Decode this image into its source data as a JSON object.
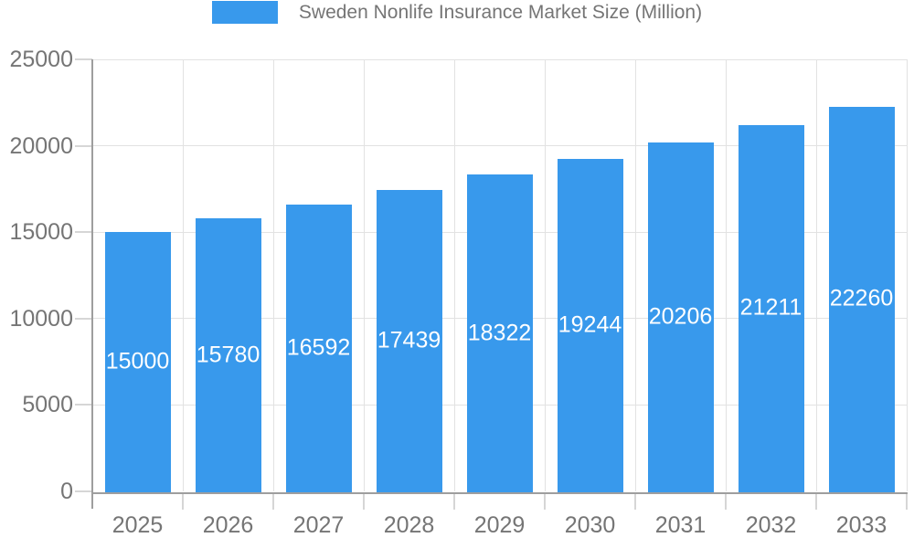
{
  "chart_data": {
    "type": "bar",
    "title": "Sweden Nonlife Insurance Market Size (Million)",
    "legend": {
      "position": "top",
      "label": "Sweden Nonlife Insurance Market Size (Million)"
    },
    "categories": [
      "2025",
      "2026",
      "2027",
      "2028",
      "2029",
      "2030",
      "2031",
      "2032",
      "2033"
    ],
    "series": [
      {
        "name": "Sweden Nonlife Insurance Market Size (Million)",
        "values": [
          15000,
          15780,
          16592,
          17439,
          18322,
          19244,
          20206,
          21211,
          22260
        ]
      }
    ],
    "bar_value_labels": [
      "15000",
      "15780",
      "16592",
      "17439",
      "18322",
      "19244",
      "20206",
      "21211",
      "22260"
    ],
    "xlabel": "",
    "ylabel": "",
    "ylim": [
      0,
      25000
    ],
    "yticks": [
      0,
      5000,
      10000,
      15000,
      20000,
      25000
    ],
    "ytick_labels": [
      "0",
      "5000",
      "10000",
      "15000",
      "20000",
      "25000"
    ],
    "grid": true,
    "colors": {
      "bar": "#3899ec",
      "bar_label_text": "#ffffff",
      "axis_text": "#757575",
      "axis_line": "#9e9e9e",
      "gridline": "#e2e2e2",
      "tick": "#d6d6d6",
      "background": "#ffffff"
    }
  }
}
